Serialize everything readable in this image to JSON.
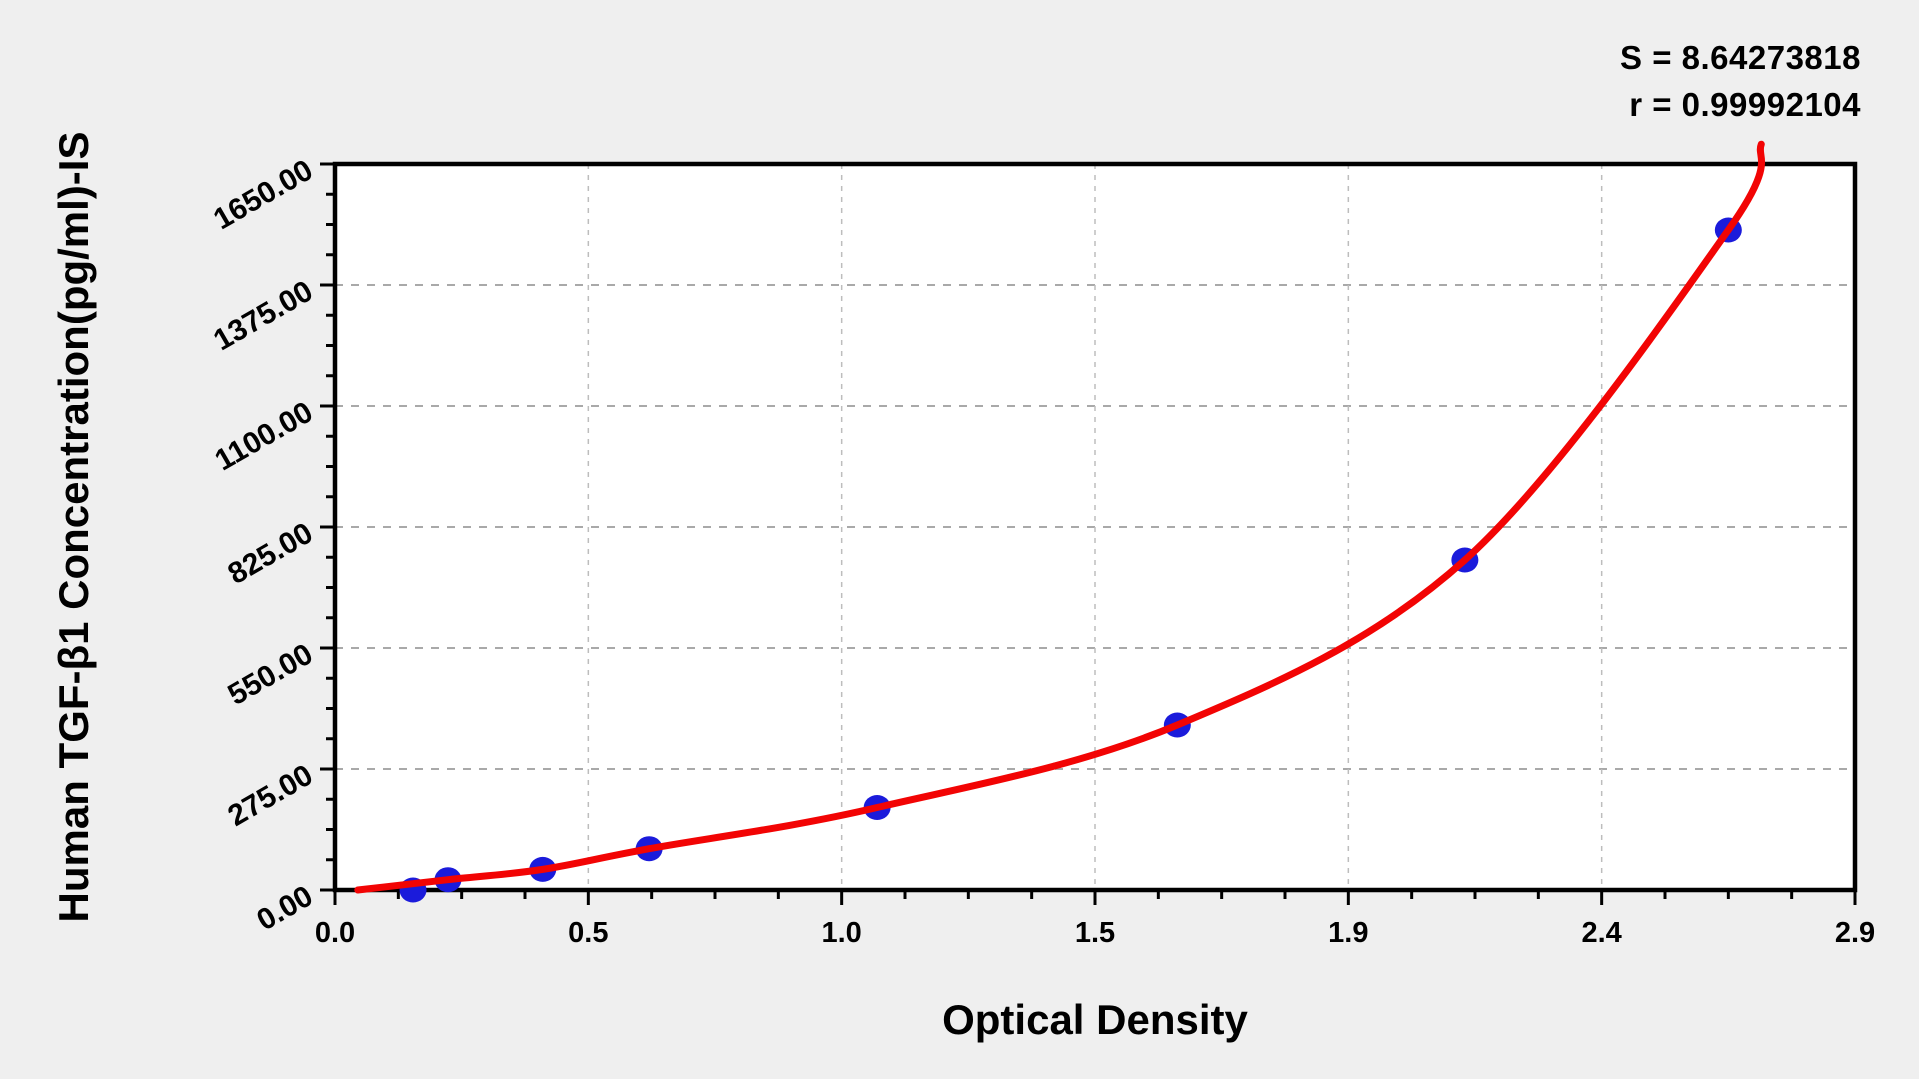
{
  "stats": {
    "s_line": "S = 8.64273818",
    "r_line": "r = 0.99992104"
  },
  "chart_data": {
    "type": "scatter",
    "title": "",
    "xlabel": "Optical Density",
    "ylabel": "Human TGF-β1 Concentration(pg/ml)-IS",
    "x_axis": {
      "tick_labels": [
        "0.0",
        "0.5",
        "1.0",
        "1.5",
        "1.9",
        "2.4",
        "2.9"
      ],
      "tick_values": [
        0.0,
        0.5,
        1.0,
        1.5,
        1.9,
        2.4,
        2.9
      ],
      "minor_divisions_per_major": 4,
      "note": "major tick labels are evenly spaced on screen"
    },
    "y_axis": {
      "tick_labels": [
        "0.00",
        "275.00",
        "550.00",
        "825.00",
        "1100.00",
        "1375.00",
        "1650.00"
      ],
      "tick_values": [
        0,
        275,
        550,
        825,
        1100,
        1375,
        1650
      ],
      "minor_divisions_per_major": 4,
      "ylim": [
        0,
        1650
      ],
      "tick_label_rotation_deg": -30
    },
    "grid": {
      "horizontal": true,
      "vertical": true,
      "style": "dashed"
    },
    "fit_statistics": {
      "S": "8.64273818",
      "r": "0.99992104"
    },
    "points": [
      {
        "od": 0.154,
        "conc": 0
      },
      {
        "od": 0.223,
        "conc": 23.4
      },
      {
        "od": 0.41,
        "conc": 46.9
      },
      {
        "od": 0.62,
        "conc": 93.8
      },
      {
        "od": 1.07,
        "conc": 187.5
      },
      {
        "od": 1.63,
        "conc": 375
      },
      {
        "od": 2.13,
        "conc": 750
      },
      {
        "od": 2.65,
        "conc": 1500
      }
    ],
    "curve_anchors": [
      [
        0.045,
        0
      ],
      [
        0.223,
        23.4
      ],
      [
        0.41,
        46.9
      ],
      [
        0.62,
        93.8
      ],
      [
        1.07,
        187.5
      ],
      [
        1.63,
        375
      ],
      [
        2.13,
        750
      ],
      [
        2.65,
        1500
      ],
      [
        2.715,
        1695
      ]
    ],
    "colors": {
      "curve": "#f20404",
      "point": "#1b1bdb",
      "grid_h": "#a9a9a9",
      "grid_v": "#bdbdbd",
      "axis": "#000000",
      "plot_bg": "#ffffff",
      "page_bg": "#efefef",
      "text": "#000000"
    },
    "legend": {
      "visible": false
    }
  }
}
